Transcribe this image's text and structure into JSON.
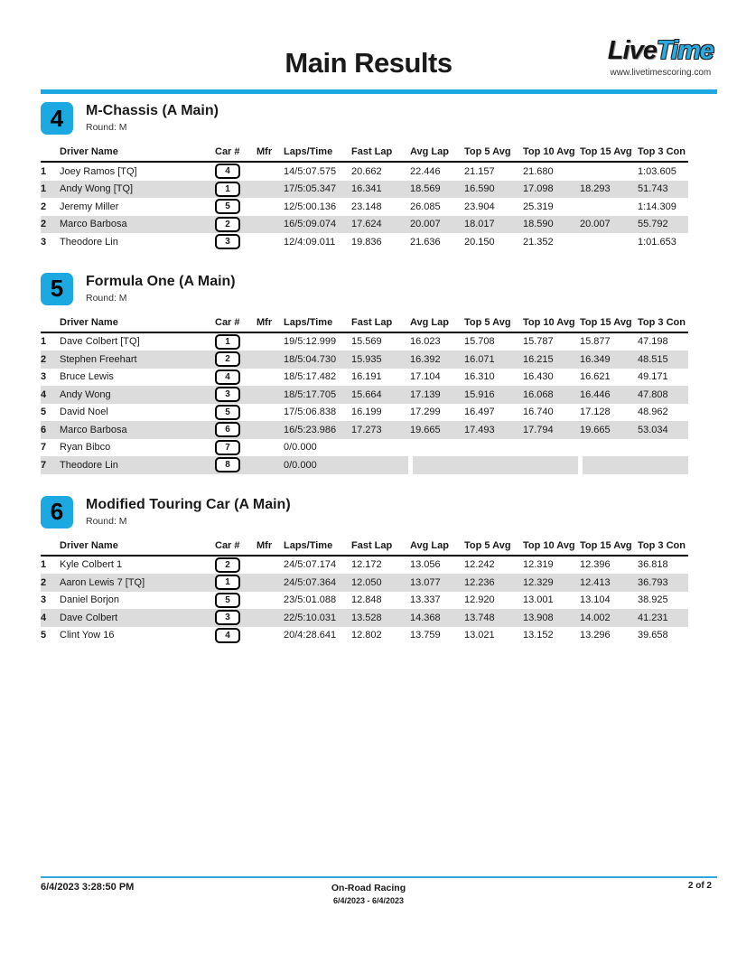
{
  "header": {
    "title": "Main Results",
    "logo_live": "Live",
    "logo_time": "Time",
    "logo_url": "www.livetimescoring.com"
  },
  "columns": [
    "Driver Name",
    "Car #",
    "Mfr",
    "Laps/Time",
    "Fast Lap",
    "Avg Lap",
    "Top 5 Avg",
    "Top 10 Avg",
    "Top 15 Avg",
    "Top 3 Con"
  ],
  "sections": [
    {
      "number": "4",
      "title": "M-Chassis (A Main)",
      "round": "Round: M",
      "rows": [
        {
          "pos": "1",
          "driver": "Joey Ramos [TQ]",
          "car": "4",
          "mfr": "",
          "laps": "14/5:07.575",
          "fast": "20.662",
          "avg": "22.446",
          "top5": "21.157",
          "top10": "21.680",
          "top15": "",
          "top3": "1:03.605"
        },
        {
          "pos": "1",
          "driver": "Andy Wong [TQ]",
          "car": "1",
          "mfr": "",
          "laps": "17/5:05.347",
          "fast": "16.341",
          "avg": "18.569",
          "top5": "16.590",
          "top10": "17.098",
          "top15": "18.293",
          "top3": "51.743"
        },
        {
          "pos": "2",
          "driver": "Jeremy Miller",
          "car": "5",
          "mfr": "",
          "laps": "12/5:00.136",
          "fast": "23.148",
          "avg": "26.085",
          "top5": "23.904",
          "top10": "25.319",
          "top15": "",
          "top3": "1:14.309"
        },
        {
          "pos": "2",
          "driver": "Marco Barbosa",
          "car": "2",
          "mfr": "",
          "laps": "16/5:09.074",
          "fast": "17.624",
          "avg": "20.007",
          "top5": "18.017",
          "top10": "18.590",
          "top15": "20.007",
          "top3": "55.792"
        },
        {
          "pos": "3",
          "driver": "Theodore Lin",
          "car": "3",
          "mfr": "",
          "laps": "12/4:09.011",
          "fast": "19.836",
          "avg": "21.636",
          "top5": "20.150",
          "top10": "21.352",
          "top15": "",
          "top3": "1:01.653"
        }
      ]
    },
    {
      "number": "5",
      "title": "Formula One (A Main)",
      "round": "Round: M",
      "rows": [
        {
          "pos": "1",
          "driver": "Dave Colbert [TQ]",
          "car": "1",
          "mfr": "",
          "laps": "19/5:12.999",
          "fast": "15.569",
          "avg": "16.023",
          "top5": "15.708",
          "top10": "15.787",
          "top15": "15.877",
          "top3": "47.198"
        },
        {
          "pos": "2",
          "driver": "Stephen Freehart",
          "car": "2",
          "mfr": "",
          "laps": "18/5:04.730",
          "fast": "15.935",
          "avg": "16.392",
          "top5": "16.071",
          "top10": "16.215",
          "top15": "16.349",
          "top3": "48.515"
        },
        {
          "pos": "3",
          "driver": "Bruce Lewis",
          "car": "4",
          "mfr": "",
          "laps": "18/5:17.482",
          "fast": "16.191",
          "avg": "17.104",
          "top5": "16.310",
          "top10": "16.430",
          "top15": "16.621",
          "top3": "49.171"
        },
        {
          "pos": "4",
          "driver": "Andy Wong",
          "car": "3",
          "mfr": "",
          "laps": "18/5:17.705",
          "fast": "15.664",
          "avg": "17.139",
          "top5": "15.916",
          "top10": "16.068",
          "top15": "16.446",
          "top3": "47.808"
        },
        {
          "pos": "5",
          "driver": "David Noel",
          "car": "5",
          "mfr": "",
          "laps": "17/5:06.838",
          "fast": "16.199",
          "avg": "17.299",
          "top5": "16.497",
          "top10": "16.740",
          "top15": "17.128",
          "top3": "48.962"
        },
        {
          "pos": "6",
          "driver": "Marco Barbosa",
          "car": "6",
          "mfr": "",
          "laps": "16/5:23.986",
          "fast": "17.273",
          "avg": "19.665",
          "top5": "17.493",
          "top10": "17.794",
          "top15": "19.665",
          "top3": "53.034"
        },
        {
          "pos": "7",
          "driver": "Ryan Bibco",
          "car": "7",
          "mfr": "",
          "laps": "0/0.000",
          "fast": "",
          "avg": "",
          "top5": "",
          "top10": "",
          "top15": "",
          "top3": ""
        },
        {
          "pos": "7",
          "driver": "Theodore Lin",
          "car": "8",
          "mfr": "",
          "laps": "0/0.000",
          "fast": "",
          "avg": "",
          "top5": "",
          "top10": "",
          "top15": "",
          "top3": ""
        }
      ]
    },
    {
      "number": "6",
      "title": "Modified Touring Car (A Main)",
      "round": "Round: M",
      "rows": [
        {
          "pos": "1",
          "driver": "Kyle Colbert 1",
          "car": "2",
          "mfr": "",
          "laps": "24/5:07.174",
          "fast": "12.172",
          "avg": "13.056",
          "top5": "12.242",
          "top10": "12.319",
          "top15": "12.396",
          "top3": "36.818"
        },
        {
          "pos": "2",
          "driver": "Aaron Lewis 7 [TQ]",
          "car": "1",
          "mfr": "",
          "laps": "24/5:07.364",
          "fast": "12.050",
          "avg": "13.077",
          "top5": "12.236",
          "top10": "12.329",
          "top15": "12.413",
          "top3": "36.793"
        },
        {
          "pos": "3",
          "driver": "Daniel Borjon",
          "car": "5",
          "mfr": "",
          "laps": "23/5:01.088",
          "fast": "12.848",
          "avg": "13.337",
          "top5": "12.920",
          "top10": "13.001",
          "top15": "13.104",
          "top3": "38.925"
        },
        {
          "pos": "4",
          "driver": "Dave Colbert",
          "car": "3",
          "mfr": "",
          "laps": "22/5:10.031",
          "fast": "13.528",
          "avg": "14.368",
          "top5": "13.748",
          "top10": "13.908",
          "top15": "14.002",
          "top3": "41.231"
        },
        {
          "pos": "5",
          "driver": "Clint Yow 16",
          "car": "4",
          "mfr": "",
          "laps": "20/4:28.641",
          "fast": "12.802",
          "avg": "13.759",
          "top5": "13.021",
          "top10": "13.152",
          "top15": "13.296",
          "top3": "39.658"
        }
      ]
    }
  ],
  "footer": {
    "left": "6/4/2023 3:28:50 PM",
    "center_title": "On-Road Racing",
    "center_sub": "6/4/2023 - 6/4/2023",
    "right": "2 of 2"
  },
  "colors": {
    "accent_blue": "#1CA8E0",
    "logo_blue": "#29ABE2",
    "alt_row_gray": "#DCDCDC"
  }
}
